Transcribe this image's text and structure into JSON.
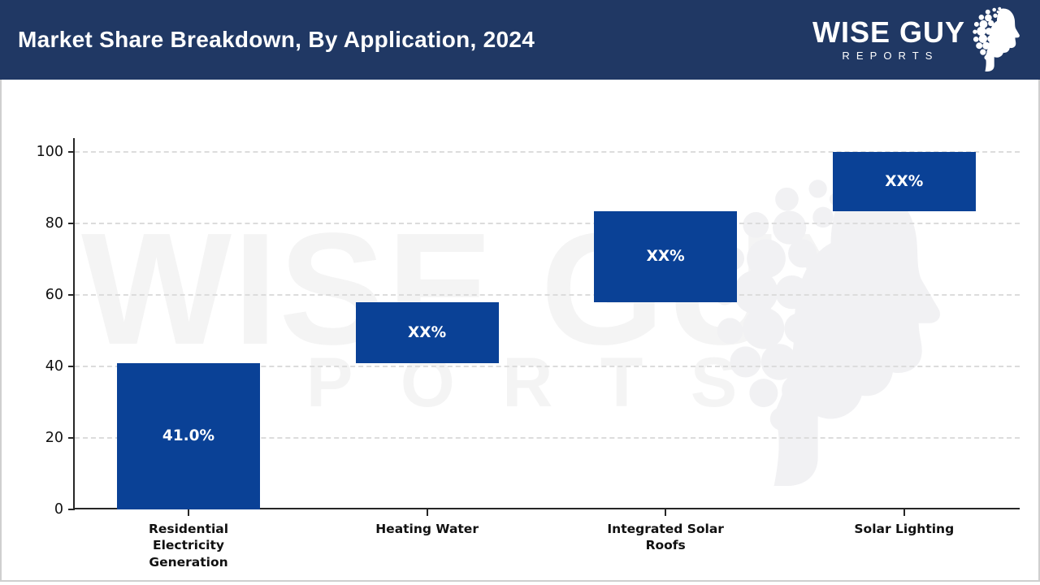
{
  "header": {
    "title": "Market Share Breakdown, By Application, 2024",
    "logo": {
      "line1": "WISE GUY",
      "line2": "REPORTS"
    }
  },
  "watermark": {
    "line1": "WISE GUY",
    "line2": "PORTS"
  },
  "chart_data": {
    "type": "bar",
    "subtype": "waterfall-floating-bars",
    "title": "Market Share Breakdown, By Application, 2024",
    "categories": [
      "Residential\nElectricity\nGeneration",
      "Heating Water",
      "Integrated Solar\nRoofs",
      "Solar Lighting"
    ],
    "segments": [
      {
        "category": "Residential Electricity Generation",
        "start": 0,
        "end": 41,
        "label": "41.0%"
      },
      {
        "category": "Heating Water",
        "start": 41,
        "end": 58,
        "label": "XX%"
      },
      {
        "category": "Integrated Solar Roofs",
        "start": 58,
        "end": 83.5,
        "label": "XX%"
      },
      {
        "category": "Solar Lighting",
        "start": 83.5,
        "end": 100,
        "label": "XX%"
      }
    ],
    "yticks": [
      0,
      20,
      40,
      60,
      80,
      100
    ],
    "ylim": [
      0,
      104
    ],
    "xlabel": "",
    "ylabel": "",
    "grid": "horizontal-dashed",
    "legend": "none",
    "bar_color": "#0a4196",
    "bar_label_color": "#ffffff",
    "header_color": "#203864",
    "axis_color": "#262626",
    "gridline_color": "#dcdcdc",
    "watermark_color": "#f4f4f4"
  }
}
